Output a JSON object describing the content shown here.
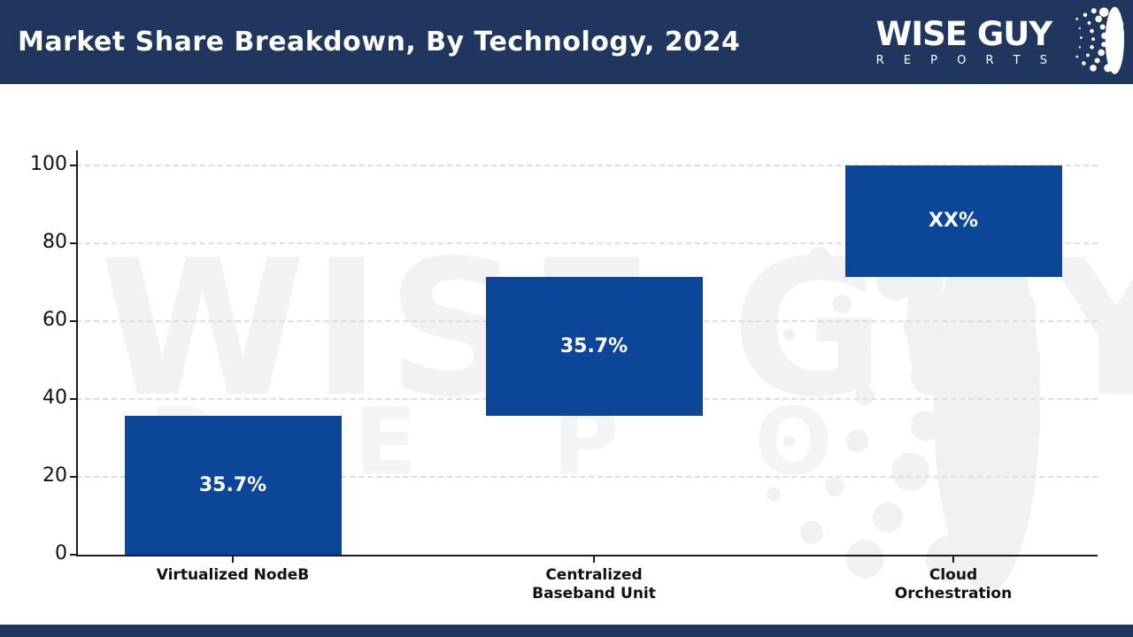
{
  "header": {
    "title": "Market Share Breakdown, By Technology, 2024",
    "bg_color": "#20365f",
    "logo": {
      "line1": "WISE GUY",
      "line2": "R E P O R T S",
      "head_icon": "dotted-face-profile"
    }
  },
  "watermark": {
    "line1": "WISE GUY",
    "line2": "R E P O R T S",
    "head_icon": "dotted-face-profile"
  },
  "footer": {
    "bg_color": "#20365f"
  },
  "chart_data": {
    "type": "bar",
    "subtype": "waterfall",
    "title": "Market Share Breakdown, By Technology, 2024",
    "xlabel": "",
    "ylabel": "",
    "categories": [
      "Virtualized NodeB",
      "Centralized\nBaseband Unit",
      "Cloud\nOrchestration"
    ],
    "bars": [
      {
        "category": "Virtualized NodeB",
        "start": 0,
        "end": 35.7,
        "label": "35.7%"
      },
      {
        "category": "Centralized Baseband Unit",
        "start": 35.7,
        "end": 71.4,
        "label": "35.7%"
      },
      {
        "category": "Cloud Orchestration",
        "start": 71.4,
        "end": 100,
        "label": "XX%"
      }
    ],
    "yticks": [
      0,
      20,
      40,
      60,
      80,
      100
    ],
    "ylim": [
      0,
      104
    ],
    "grid": "horizontal-dashed",
    "legend": "none",
    "bar_color": "#0b4698",
    "axis_color": "#1a1a1a",
    "gridline_color": "#dedede",
    "bar_label_color": "#ffffff"
  }
}
